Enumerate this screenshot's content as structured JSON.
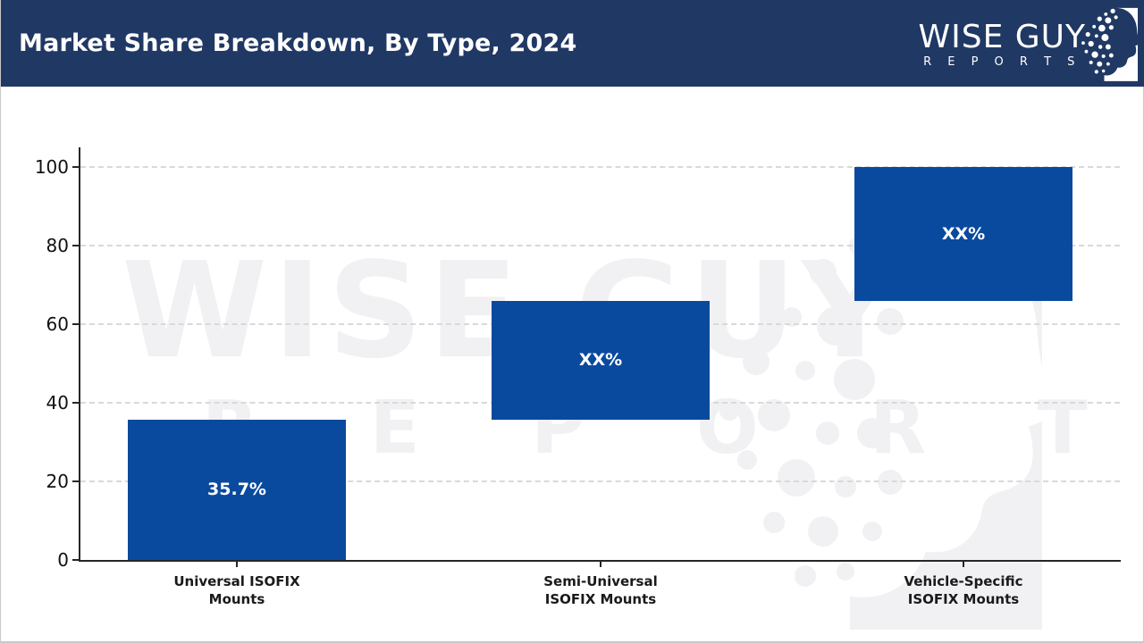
{
  "header": {
    "title": "Market Share Breakdown, By Type, 2024",
    "logo": {
      "primary": "WISE GUY",
      "secondary": "R E P O R T S"
    }
  },
  "watermark": {
    "line1": "WISE GUY",
    "line2": "R E P O R T S"
  },
  "chart_data": {
    "type": "bar",
    "subtype": "waterfall-stacked",
    "title": "Market Share Breakdown, By Type, 2024",
    "categories": [
      [
        "Universal ISOFIX",
        "Mounts"
      ],
      [
        "Semi-Universal",
        "ISOFIX Mounts"
      ],
      [
        "Vehicle-Specific",
        "ISOFIX Mounts"
      ]
    ],
    "segments": [
      {
        "category": "Universal ISOFIX Mounts",
        "start": 0,
        "end": 35.7,
        "label": "35.7%"
      },
      {
        "category": "Semi-Universal ISOFIX Mounts",
        "start": 35.7,
        "end": 66,
        "label": "XX%"
      },
      {
        "category": "Vehicle-Specific ISOFIX Mounts",
        "start": 66,
        "end": 100,
        "label": "XX%"
      }
    ],
    "xlabel": "",
    "ylabel": "",
    "ylim": [
      0,
      100
    ],
    "yticks": [
      0,
      20,
      40,
      60,
      80,
      100
    ],
    "grid": "horizontal-dashed",
    "legend": "none",
    "bar_color": "#0a4a9e",
    "bar_label_color": "#ffffff"
  },
  "colors": {
    "header_bg": "#203864",
    "bar": "#0a4a9e",
    "gridline": "#d9d9d9",
    "axis": "#262626",
    "watermark": "#f1f1f4",
    "title_text": "#ffffff"
  }
}
